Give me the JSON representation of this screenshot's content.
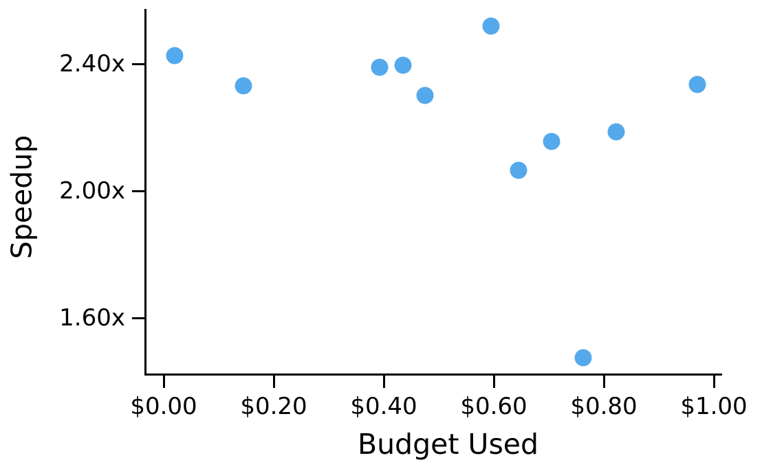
{
  "figure": {
    "background_color": "#ffffff",
    "axis_color": "#000000",
    "text_color": "#000000"
  },
  "chart_data": {
    "type": "scatter",
    "title": "",
    "xlabel": "Budget Used",
    "ylabel": "Speedup",
    "marker_color": "#54a9ec",
    "marker_diameter_px": 25,
    "grid": false,
    "legend": null,
    "xlim": [
      -0.03125,
      1.015
    ],
    "ylim": [
      1.425,
      2.573
    ],
    "x_ticks": [
      {
        "value": 0.0,
        "label": "$0.00"
      },
      {
        "value": 0.2,
        "label": "$0.20"
      },
      {
        "value": 0.4,
        "label": "$0.40"
      },
      {
        "value": 0.6,
        "label": "$0.60"
      },
      {
        "value": 0.8,
        "label": "$0.80"
      },
      {
        "value": 1.0,
        "label": "$1.00"
      }
    ],
    "y_ticks": [
      {
        "value": 2.4,
        "label": "2.40x"
      },
      {
        "value": 2.0,
        "label": "2.00x"
      },
      {
        "value": 1.6,
        "label": "1.60x"
      }
    ],
    "points": [
      {
        "x": 0.02,
        "y": 2.425
      },
      {
        "x": 0.145,
        "y": 2.33
      },
      {
        "x": 0.3925,
        "y": 2.39
      },
      {
        "x": 0.435,
        "y": 2.395
      },
      {
        "x": 0.475,
        "y": 2.3
      },
      {
        "x": 0.595,
        "y": 2.52
      },
      {
        "x": 0.645,
        "y": 2.065
      },
      {
        "x": 0.705,
        "y": 2.155
      },
      {
        "x": 0.7625,
        "y": 1.475
      },
      {
        "x": 0.8225,
        "y": 2.185
      },
      {
        "x": 0.97,
        "y": 2.335
      }
    ]
  }
}
